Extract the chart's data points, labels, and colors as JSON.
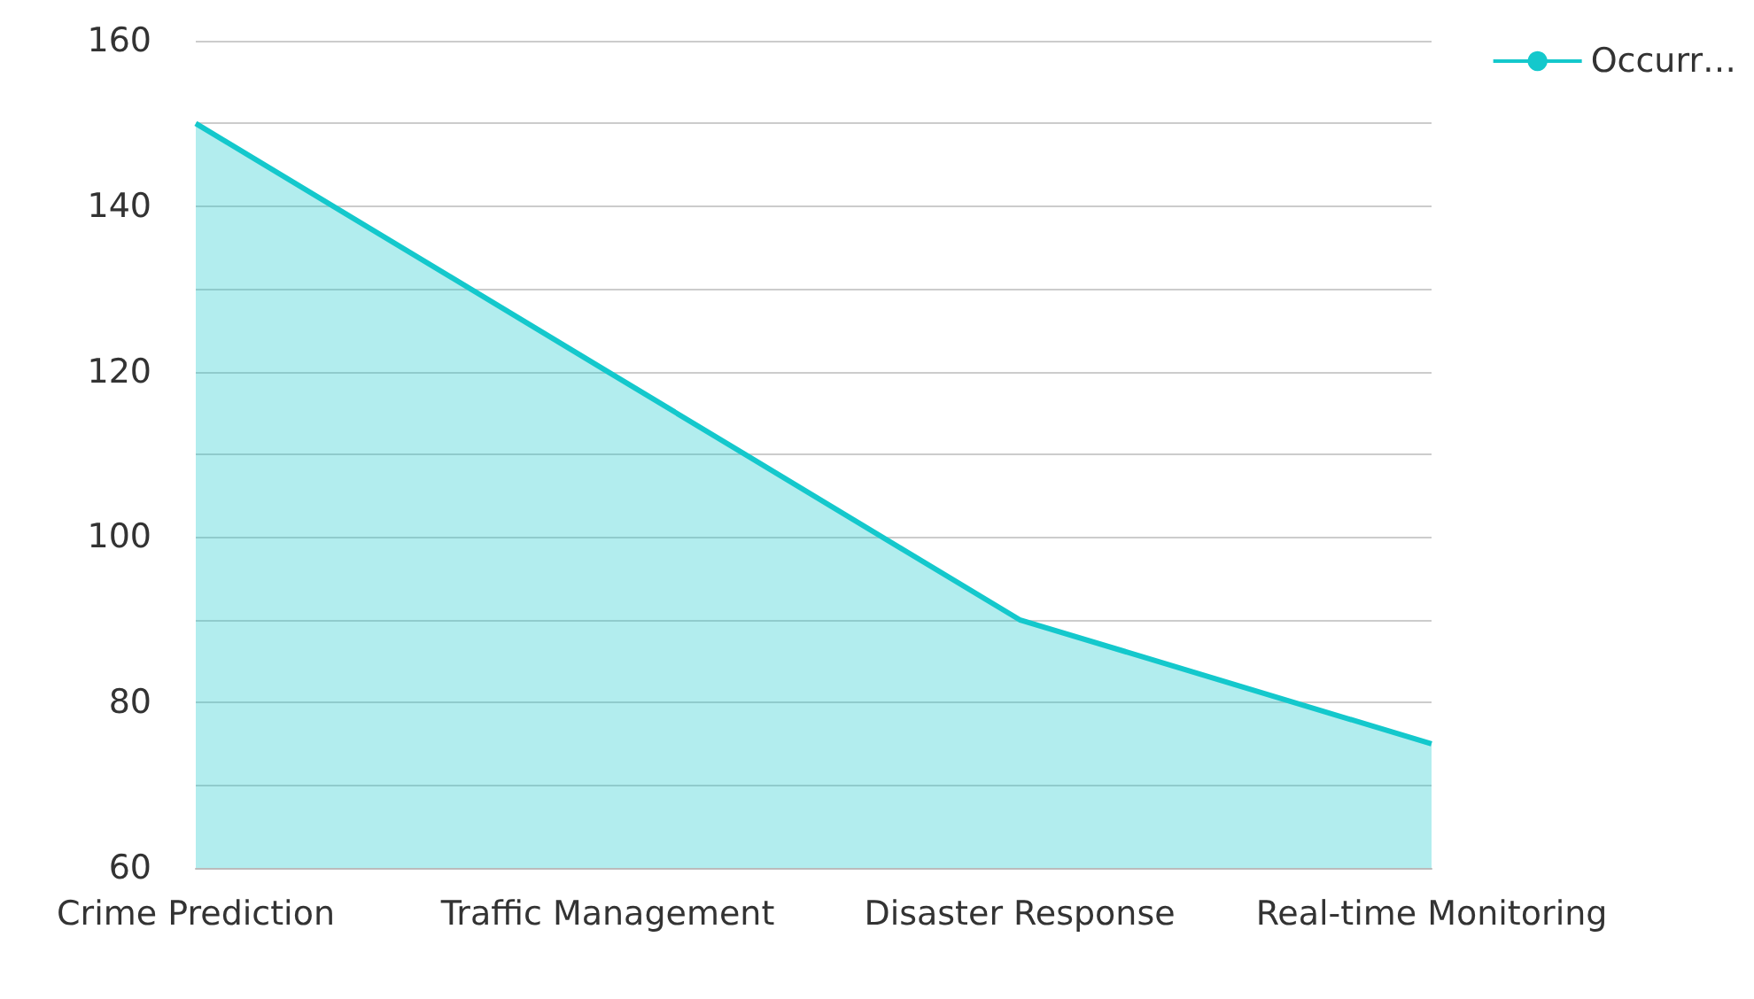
{
  "chart_data": {
    "type": "area",
    "categories": [
      "Crime Prediction",
      "Traffic Management",
      "Disaster Response",
      "Real-time Monitoring"
    ],
    "series": [
      {
        "name": "Occurr…",
        "color": "#14c8cc",
        "values": [
          150,
          120,
          90,
          75
        ]
      }
    ],
    "ylim": [
      60,
      160
    ],
    "yticks": [
      60,
      {
        "value": 70,
        "label": null
      },
      80,
      {
        "value": 90,
        "label": null
      },
      100,
      {
        "value": 110,
        "label": null
      },
      120,
      {
        "value": 130,
        "label": null
      },
      140,
      {
        "value": 150,
        "label": null
      },
      160
    ],
    "grid": "y",
    "legend": "top right",
    "marker": "none"
  }
}
